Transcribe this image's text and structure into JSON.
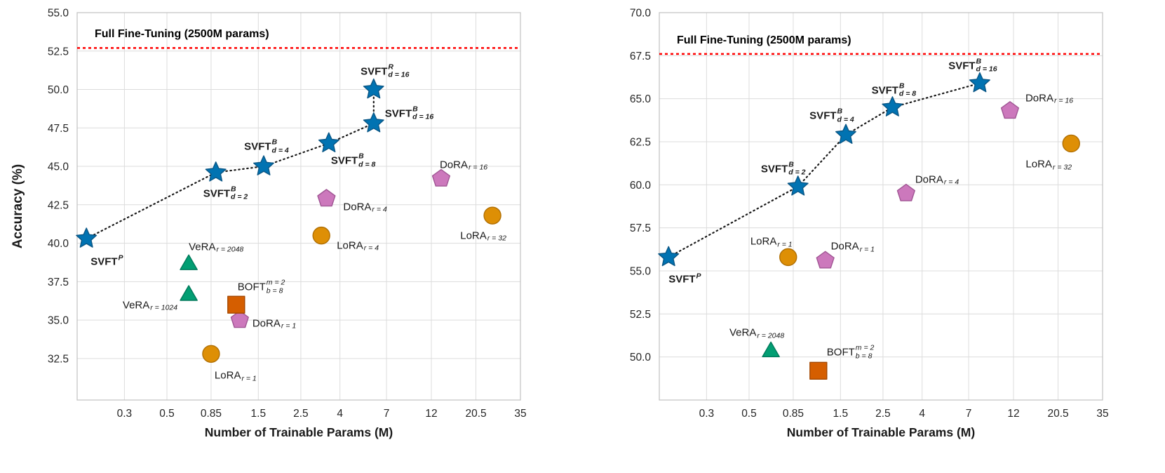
{
  "figure": {
    "panels": 2,
    "background": "#ffffff"
  },
  "series_styles": {
    "SVFT": {
      "marker": "star",
      "fill": "#0173B2",
      "stroke": "#0A5685"
    },
    "LoRA": {
      "marker": "circle",
      "fill": "#DE8F05",
      "stroke": "#B06F04"
    },
    "DoRA": {
      "marker": "pentagon",
      "fill": "#CC78BC",
      "stroke": "#A05694"
    },
    "VeRA": {
      "marker": "triangle",
      "fill": "#029E73",
      "stroke": "#01785A"
    },
    "BOFT": {
      "marker": "square",
      "fill": "#D55E00",
      "stroke": "#A34700"
    }
  },
  "chart_data": [
    {
      "type": "scatter",
      "xlabel": "Number of Trainable Params (M)",
      "ylabel": "Accuracy (%)",
      "x_scale": "log",
      "x_range": [
        0.17,
        35
      ],
      "x_ticks": [
        "0.3",
        "0.5",
        "0.85",
        "1.5",
        "2.5",
        "4",
        "7",
        "12",
        "20.5",
        "35"
      ],
      "y_range": [
        29.8,
        55.0
      ],
      "y_ticks": [
        "32.5",
        "35.0",
        "37.5",
        "40.0",
        "42.5",
        "45.0",
        "47.5",
        "50.0",
        "52.5",
        "55.0"
      ],
      "grid": true,
      "full_ft_line": {
        "label": "Full Fine-Tuning (2500M params)",
        "y": 52.7,
        "color": "#FF0000"
      },
      "trend_line_series": "SVFT",
      "points": [
        {
          "series": "SVFT",
          "x": 0.19,
          "y": 40.3,
          "label": {
            "base": "SVFT",
            "sup": "P"
          },
          "label_offset": [
            6,
            33
          ],
          "anchor": "start"
        },
        {
          "series": "SVFT",
          "x": 0.9,
          "y": 44.6,
          "label": {
            "base": "SVFT",
            "sup": "B",
            "sub": "d = 2"
          },
          "label_offset": [
            -18,
            30
          ],
          "anchor": "start"
        },
        {
          "series": "SVFT",
          "x": 1.6,
          "y": 45.0,
          "label": {
            "base": "SVFT",
            "sup": "B",
            "sub": "d = 4"
          },
          "label_offset": [
            4,
            -28
          ],
          "anchor": "middle"
        },
        {
          "series": "SVFT",
          "x": 3.5,
          "y": 46.5,
          "label": {
            "base": "SVFT",
            "sup": "B",
            "sub": "d = 8"
          },
          "label_offset": [
            3,
            25
          ],
          "anchor": "start"
        },
        {
          "series": "SVFT",
          "x": 6.0,
          "y": 47.8,
          "label": {
            "base": "SVFT",
            "sup": "B",
            "sub": "d = 16"
          },
          "label_offset": [
            16,
            -14
          ],
          "anchor": "start"
        },
        {
          "series": "SVFT",
          "x": 6.0,
          "y": 50.0,
          "label": {
            "base": "SVFT",
            "sup": "R",
            "sub": "d = 16"
          },
          "label_offset": [
            16,
            -26
          ],
          "anchor": "middle"
        },
        {
          "series": "VeRA",
          "x": 0.65,
          "y": 36.6,
          "label": {
            "base": "VeRA",
            "sub": "r = 1024"
          },
          "label_offset": [
            -16,
            14
          ],
          "anchor": "end"
        },
        {
          "series": "VeRA",
          "x": 0.65,
          "y": 38.6,
          "label": {
            "base": "VeRA",
            "sub": "r = 2048"
          },
          "label_offset": [
            0,
            -25
          ],
          "anchor": "start"
        },
        {
          "series": "LoRA",
          "x": 0.85,
          "y": 32.8,
          "label": {
            "base": "LoRA",
            "sub": "r = 1"
          },
          "label_offset": [
            5,
            31
          ],
          "anchor": "start"
        },
        {
          "series": "LoRA",
          "x": 3.2,
          "y": 40.5,
          "label": {
            "base": "LoRA",
            "sub": "r = 4"
          },
          "label_offset": [
            22,
            14
          ],
          "anchor": "start"
        },
        {
          "series": "DoRA",
          "x": 1.2,
          "y": 35.0,
          "label": {
            "base": "DoRA",
            "sub": "r = 1"
          },
          "label_offset": [
            18,
            5
          ],
          "anchor": "start"
        },
        {
          "series": "DoRA",
          "x": 3.4,
          "y": 42.9,
          "label": {
            "base": "DoRA",
            "sub": "r = 4"
          },
          "label_offset": [
            24,
            12
          ],
          "anchor": "start"
        },
        {
          "series": "DoRA",
          "x": 13.5,
          "y": 44.2,
          "label": {
            "base": "DoRA",
            "sub": "r = 16"
          },
          "label_offset": [
            -2,
            -20
          ],
          "anchor": "start"
        },
        {
          "series": "LoRA",
          "x": 25,
          "y": 41.8,
          "label": {
            "base": "LoRA",
            "sub": "r = 32"
          },
          "label_offset": [
            -13,
            29
          ],
          "anchor": "middle"
        },
        {
          "series": "BOFT",
          "x": 1.15,
          "y": 36.0,
          "label": {
            "base": "BOFT",
            "sup": "m = 2",
            "sub": "b = 8"
          },
          "label_offset": [
            2,
            -25
          ],
          "anchor": "start"
        }
      ]
    },
    {
      "type": "scatter",
      "xlabel": "Number of Trainable Params (M)",
      "ylabel": "",
      "x_scale": "log",
      "x_range": [
        0.17,
        35
      ],
      "x_ticks": [
        "0.3",
        "0.5",
        "0.85",
        "1.5",
        "2.5",
        "4",
        "7",
        "12",
        "20.5",
        "35"
      ],
      "y_range": [
        47.5,
        70.0
      ],
      "y_ticks": [
        "50.0",
        "52.5",
        "55.0",
        "57.5",
        "60.0",
        "62.5",
        "65.0",
        "67.5",
        "70.0"
      ],
      "grid": true,
      "full_ft_line": {
        "label": "Full Fine-Tuning (2500M params)",
        "y": 67.6,
        "color": "#FF0000"
      },
      "trend_line_series": "SVFT",
      "points": [
        {
          "series": "SVFT",
          "x": 0.19,
          "y": 55.8,
          "label": {
            "base": "SVFT",
            "sup": "P"
          },
          "label_offset": [
            0,
            32
          ],
          "anchor": "start"
        },
        {
          "series": "SVFT",
          "x": 0.9,
          "y": 59.9,
          "label": {
            "base": "SVFT",
            "sup": "B",
            "sub": "d = 2"
          },
          "label_offset": [
            -21,
            -25
          ],
          "anchor": "middle"
        },
        {
          "series": "SVFT",
          "x": 1.6,
          "y": 62.9,
          "label": {
            "base": "SVFT",
            "sup": "B",
            "sub": "d = 4"
          },
          "label_offset": [
            -20,
            -27
          ],
          "anchor": "middle"
        },
        {
          "series": "SVFT",
          "x": 2.8,
          "y": 64.5,
          "label": {
            "base": "SVFT",
            "sup": "B",
            "sub": "d = 8"
          },
          "label_offset": [
            2,
            -24
          ],
          "anchor": "middle"
        },
        {
          "series": "SVFT",
          "x": 8.0,
          "y": 65.9,
          "label": {
            "base": "SVFT",
            "sup": "B",
            "sub": "d = 16"
          },
          "label_offset": [
            -10,
            -25
          ],
          "anchor": "middle"
        },
        {
          "series": "VeRA",
          "x": 0.65,
          "y": 50.3,
          "label": {
            "base": "VeRA",
            "sub": "r = 2048"
          },
          "label_offset": [
            -20,
            -27
          ],
          "anchor": "middle"
        },
        {
          "series": "LoRA",
          "x": 0.8,
          "y": 55.8,
          "label": {
            "base": "LoRA",
            "sub": "r = 1"
          },
          "label_offset": [
            -24,
            -22
          ],
          "anchor": "middle"
        },
        {
          "series": "DoRA",
          "x": 1.25,
          "y": 55.6,
          "label": {
            "base": "DoRA",
            "sub": "r = 1"
          },
          "label_offset": [
            8,
            -20
          ],
          "anchor": "start"
        },
        {
          "series": "DoRA",
          "x": 3.3,
          "y": 59.5,
          "label": {
            "base": "DoRA",
            "sub": "r = 4"
          },
          "label_offset": [
            13,
            -20
          ],
          "anchor": "start"
        },
        {
          "series": "DoRA",
          "x": 11.5,
          "y": 64.3,
          "label": {
            "base": "DoRA",
            "sub": "r = 16"
          },
          "label_offset": [
            22,
            -18
          ],
          "anchor": "start"
        },
        {
          "series": "LoRA",
          "x": 24,
          "y": 62.4,
          "label": {
            "base": "LoRA",
            "sub": "r = 32"
          },
          "label_offset": [
            -32,
            30
          ],
          "anchor": "middle"
        },
        {
          "series": "BOFT",
          "x": 1.15,
          "y": 49.2,
          "label": {
            "base": "BOFT",
            "sup": "m = 2",
            "sub": "b = 8"
          },
          "label_offset": [
            12,
            -26
          ],
          "anchor": "start"
        }
      ]
    }
  ]
}
